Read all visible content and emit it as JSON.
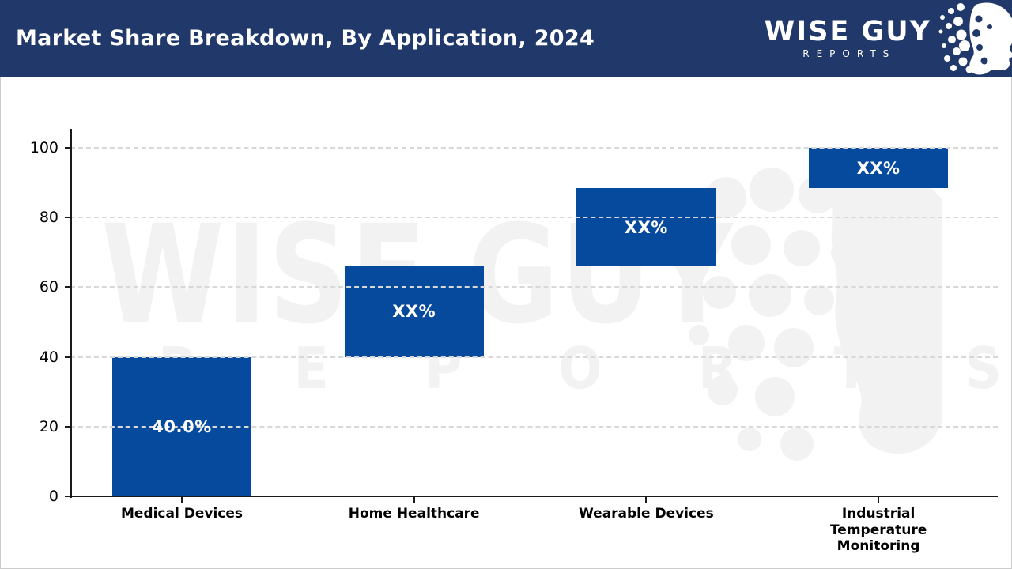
{
  "header": {
    "title": "Market Share Breakdown, By Application, 2024",
    "bg_color": "#21386a",
    "logo": {
      "line1": "WISE GUY",
      "line2": "REPORTS"
    }
  },
  "watermark": {
    "line1": "WISE GUY",
    "line2": "R E P O R T S",
    "head_icon": "dotted-face-profile",
    "color": "#f2f2f2"
  },
  "chart_data": {
    "type": "waterfall",
    "title": "Market Share Breakdown, By Application, 2024",
    "categories": [
      "Medical Devices",
      "Home Healthcare",
      "Wearable Devices",
      "Industrial Temperature Monitoring"
    ],
    "steps": [
      {
        "category": "Medical Devices",
        "start": 0,
        "end": 40.0,
        "label": "40.0%"
      },
      {
        "category": "Home Healthcare",
        "start": 40.0,
        "end": 65.9,
        "label": "XX%"
      },
      {
        "category": "Wearable Devices",
        "start": 65.9,
        "end": 88.3,
        "label": "XX%"
      },
      {
        "category": "Industrial Temperature Monitoring",
        "start": 88.3,
        "end": 100.0,
        "label": "XX%"
      }
    ],
    "yticks": [
      0,
      20,
      40,
      60,
      80,
      100
    ],
    "ylim": [
      0,
      105
    ],
    "xlabel": "",
    "ylabel": "",
    "grid": "horizontal-dashed-on-top",
    "legend": "none",
    "bar_color": "#064a9e",
    "bar_label_color": "#ffffff",
    "axis_color": "#1a1a1a",
    "gridline_color": "#d8d8d8"
  }
}
